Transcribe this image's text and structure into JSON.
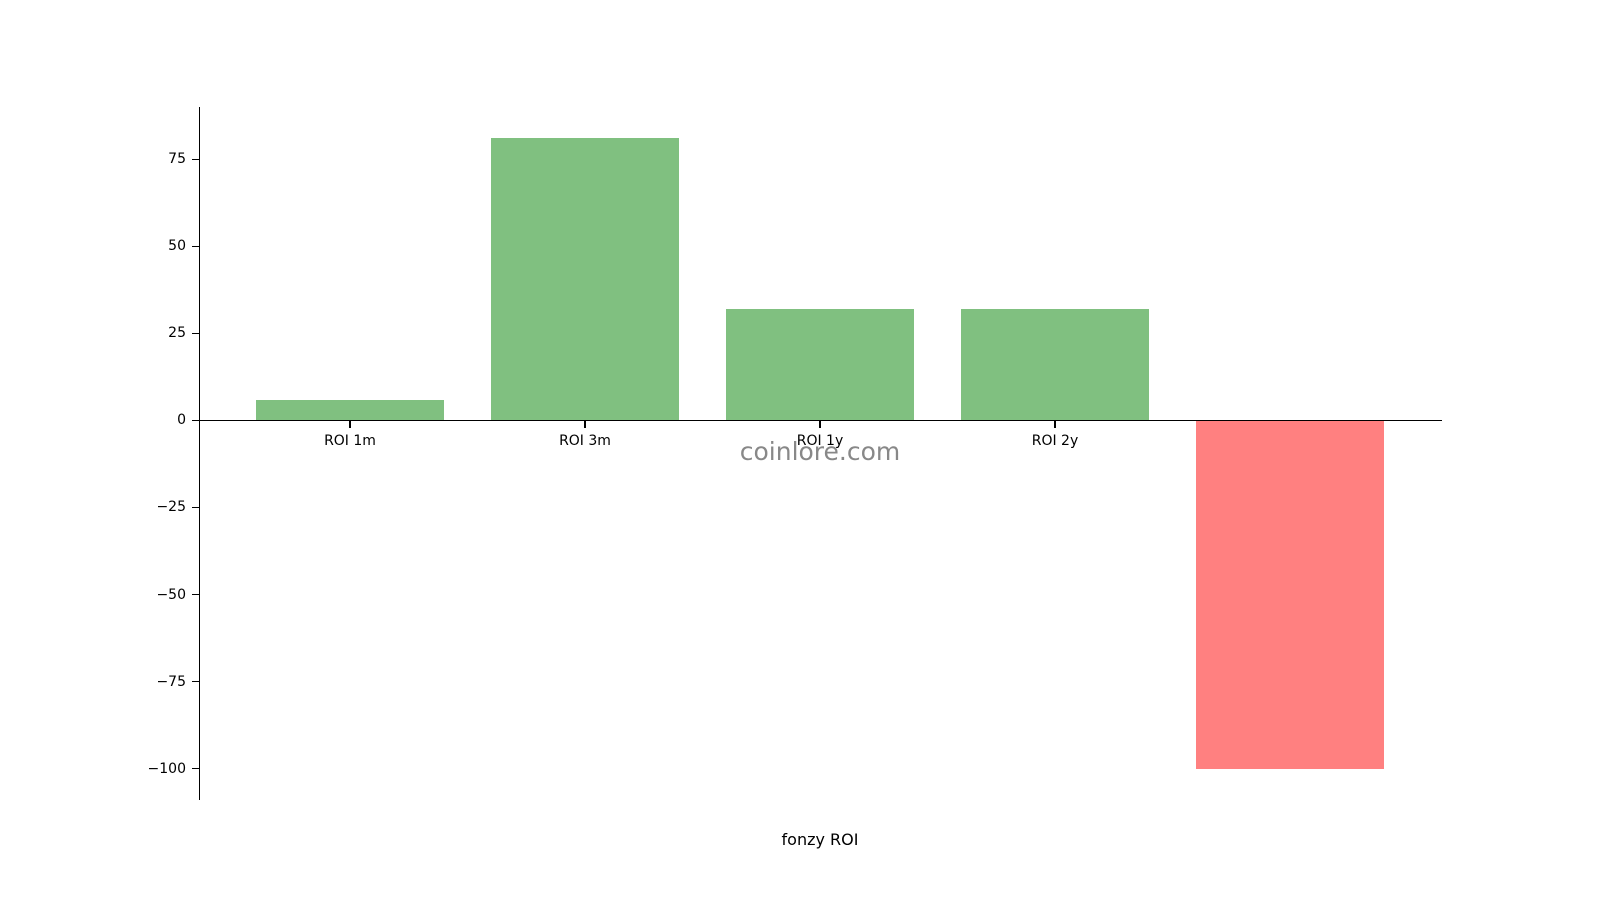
{
  "chart_data": {
    "type": "bar",
    "title": "fonzy ROI",
    "watermark": "coinlore.com",
    "categories": [
      "ROI 1m",
      "ROI 3m",
      "ROI 1y",
      "ROI 2y",
      ""
    ],
    "values": [
      6,
      81,
      32,
      32,
      -100
    ],
    "bar_colors": [
      "#80c080",
      "#80c080",
      "#80c080",
      "#80c080",
      "#ff8080"
    ],
    "positive_color": "#80c080",
    "negative_color": "#ff8080",
    "y_ticks": [
      75,
      50,
      25,
      0,
      -25,
      -50,
      -75,
      -100
    ],
    "ylim": [
      -109,
      90
    ],
    "xlabel": "",
    "ylabel": "",
    "grid": false,
    "legend": false,
    "axis_color": "#000000",
    "tick_label_color": "#000000",
    "watermark_color": "#888888",
    "background_color": "#ffffff"
  }
}
